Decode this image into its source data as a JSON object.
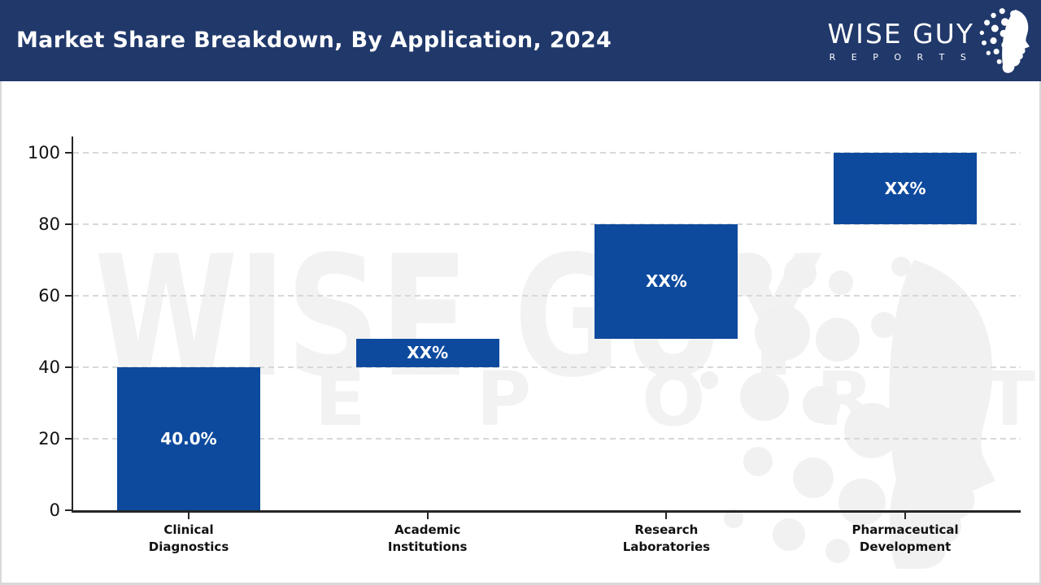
{
  "header": {
    "title": "Market Share Breakdown, By Application, 2024",
    "bg_color": "#20386a",
    "logo": {
      "line1": "WISE GUY",
      "line2": "R E P O R T S"
    }
  },
  "watermark": {
    "line1": "WISE GUY",
    "line2": "R E P O R T S",
    "color": "#f2f2f2"
  },
  "chart_data": {
    "type": "bar",
    "subtype": "waterfall",
    "title": "Market Share Breakdown, By Application, 2024",
    "xlabel": "",
    "ylabel": "",
    "ylim": [
      0,
      104.5
    ],
    "yticks": [
      0,
      20,
      40,
      60,
      80,
      100
    ],
    "grid": {
      "visible": true,
      "style": "dashed",
      "color": "#d8d8d8"
    },
    "legend": {
      "visible": false
    },
    "bar_color": "#0d4a9e",
    "bar_label_color": "#ffffff",
    "axis_color": "#262626",
    "tick_label_color": "#111111",
    "categories": [
      {
        "line1": "Clinical",
        "line2": "Diagnostics"
      },
      {
        "line1": "Academic",
        "line2": "Institutions"
      },
      {
        "line1": "Research",
        "line2": "Laboratories"
      },
      {
        "line1": "Pharmaceutical",
        "line2": "Development"
      }
    ],
    "segments": [
      {
        "category": "Clinical Diagnostics",
        "start": 0,
        "end": 40,
        "value": 40,
        "label": "40.0%"
      },
      {
        "category": "Academic Institutions",
        "start": 40,
        "end": 48,
        "value": 8,
        "label": "XX%"
      },
      {
        "category": "Research Laboratories",
        "start": 48,
        "end": 80,
        "value": 32,
        "label": "XX%"
      },
      {
        "category": "Pharmaceutical Development",
        "start": 80,
        "end": 100,
        "value": 20,
        "label": "XX%"
      }
    ]
  }
}
